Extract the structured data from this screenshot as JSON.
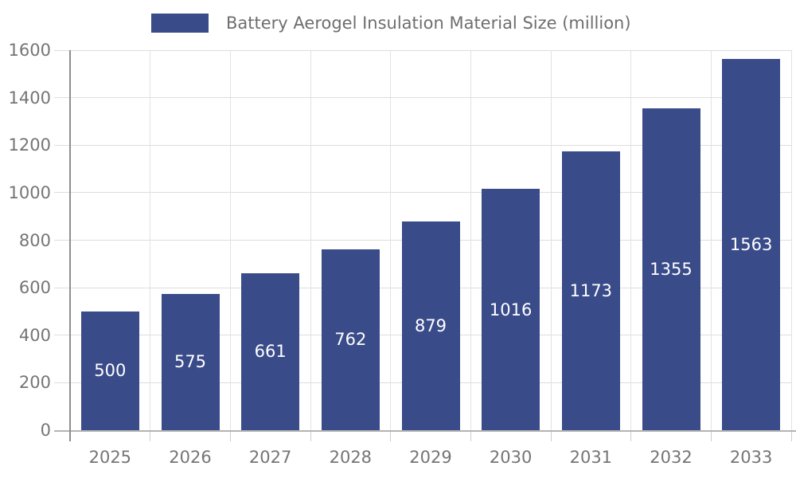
{
  "legend": {
    "label": "Battery Aerogel Insulation Material Size (million)"
  },
  "colors": {
    "bar": "#3A4B8A",
    "bar_label": "#ffffff",
    "axis_label": "#757575",
    "legend_text": "#6e6e6e",
    "gridline_h": "#dddddd",
    "gridline_v": "#e2e2e2",
    "y_axis_line": "#8e8e8e",
    "x_axis_line": "#b3b3b3",
    "tick": "#cccccc",
    "background": "#ffffff"
  },
  "chart_data": {
    "type": "bar",
    "title": "Battery Aerogel Insulation Material Size (million)",
    "series_name": "Battery Aerogel Insulation Material Size (million)",
    "categories": [
      "2025",
      "2026",
      "2027",
      "2028",
      "2029",
      "2030",
      "2031",
      "2032",
      "2033"
    ],
    "values": [
      500,
      575,
      661,
      762,
      879,
      1016,
      1173,
      1355,
      1563
    ],
    "xlabel": "",
    "ylabel": "",
    "ylim": [
      0,
      1600
    ],
    "yticks": [
      0,
      200,
      400,
      600,
      800,
      1000,
      1200,
      1400,
      1600
    ],
    "grid": true,
    "legend_position": "top",
    "bar_labels_inside": true
  }
}
